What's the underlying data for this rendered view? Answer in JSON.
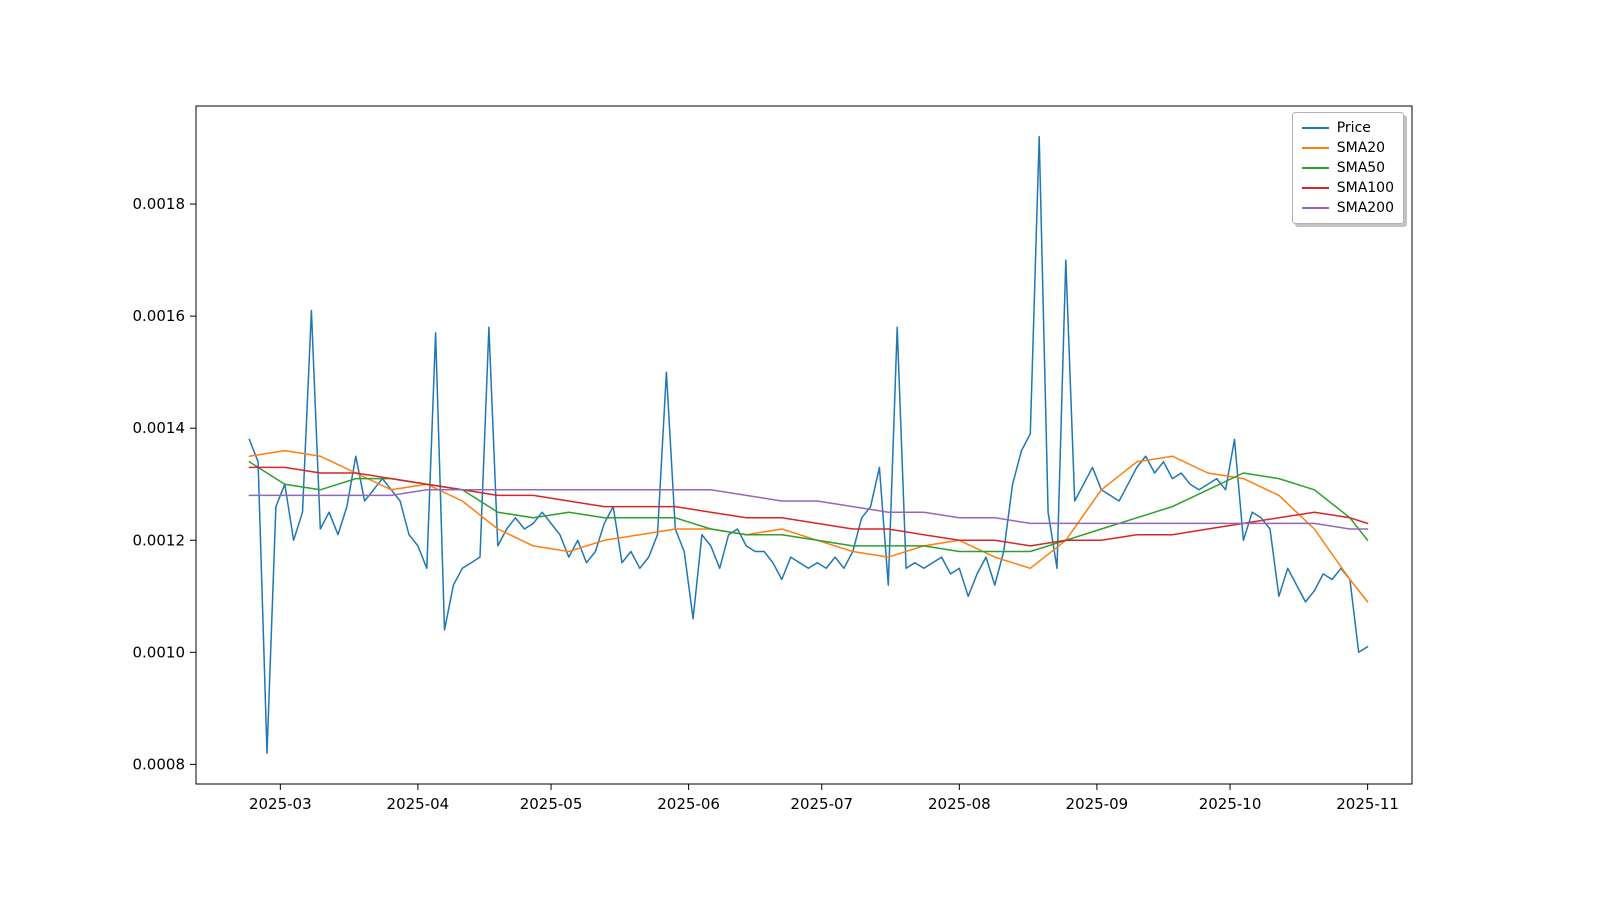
{
  "chart_data": {
    "type": "line",
    "title": "",
    "xlabel": "",
    "ylabel": "",
    "grid": false,
    "x_axis": {
      "unit": "days-from-first-point",
      "range_days": [
        -12,
        262
      ],
      "ticks_days": [
        7,
        38,
        68,
        99,
        129,
        160,
        191,
        221,
        252
      ],
      "tick_labels": [
        "2025-03",
        "2025-04",
        "2025-05",
        "2025-06",
        "2025-07",
        "2025-08",
        "2025-09",
        "2025-10",
        "2025-11"
      ]
    },
    "y_axis": {
      "range": [
        0.000765,
        0.001975
      ],
      "ticks": [
        0.0008,
        0.001,
        0.0012,
        0.0014,
        0.0016,
        0.0018
      ],
      "tick_labels": [
        "0.0008",
        "0.0010",
        "0.0012",
        "0.0014",
        "0.0016",
        "0.0018"
      ]
    },
    "legend": {
      "position": "upper right",
      "entries": [
        "Price",
        "SMA20",
        "SMA50",
        "SMA100",
        "SMA200"
      ]
    },
    "series": [
      {
        "name": "Price",
        "color": "#1f77b4",
        "x_start_day": 0,
        "x_step_days": 2,
        "values": [
          0.00138,
          0.00134,
          0.00082,
          0.00126,
          0.0013,
          0.0012,
          0.00125,
          0.00161,
          0.00122,
          0.00125,
          0.00121,
          0.00126,
          0.00135,
          0.00127,
          0.00129,
          0.00131,
          0.00129,
          0.00127,
          0.00121,
          0.00119,
          0.00115,
          0.00157,
          0.00104,
          0.00112,
          0.00115,
          0.00116,
          0.00117,
          0.00158,
          0.00119,
          0.00122,
          0.00124,
          0.00122,
          0.00123,
          0.00125,
          0.00123,
          0.00121,
          0.00117,
          0.0012,
          0.00116,
          0.00118,
          0.00123,
          0.00126,
          0.00116,
          0.00118,
          0.00115,
          0.00117,
          0.00121,
          0.0015,
          0.00122,
          0.00118,
          0.00106,
          0.00121,
          0.00119,
          0.00115,
          0.00121,
          0.00122,
          0.00119,
          0.00118,
          0.00118,
          0.00116,
          0.00113,
          0.00117,
          0.00116,
          0.00115,
          0.00116,
          0.00115,
          0.00117,
          0.00115,
          0.00118,
          0.00124,
          0.00126,
          0.00133,
          0.00112,
          0.00158,
          0.00115,
          0.00116,
          0.00115,
          0.00116,
          0.00117,
          0.00114,
          0.00115,
          0.0011,
          0.00114,
          0.00117,
          0.00112,
          0.00118,
          0.0013,
          0.00136,
          0.00139,
          0.00192,
          0.00125,
          0.00115,
          0.0017,
          0.00127,
          0.0013,
          0.00133,
          0.00129,
          0.00128,
          0.00127,
          0.0013,
          0.00133,
          0.00135,
          0.00132,
          0.00134,
          0.00131,
          0.00132,
          0.0013,
          0.00129,
          0.0013,
          0.00131,
          0.00129,
          0.00138,
          0.0012,
          0.00125,
          0.00124,
          0.00122,
          0.0011,
          0.00115,
          0.00112,
          0.00109,
          0.00111,
          0.00114,
          0.00113,
          0.00115,
          0.00113,
          0.001,
          0.00101
        ]
      },
      {
        "name": "SMA20",
        "color": "#ff7f0e",
        "x_days": [
          0,
          8,
          16,
          24,
          32,
          40,
          48,
          56,
          64,
          72,
          80,
          88,
          96,
          104,
          112,
          120,
          128,
          136,
          144,
          152,
          160,
          168,
          176,
          184,
          192,
          200,
          208,
          216,
          224,
          232,
          240,
          248,
          252
        ],
        "values": [
          0.00135,
          0.00136,
          0.00135,
          0.00132,
          0.00129,
          0.0013,
          0.00127,
          0.00122,
          0.00119,
          0.00118,
          0.0012,
          0.00121,
          0.00122,
          0.00122,
          0.00121,
          0.00122,
          0.0012,
          0.00118,
          0.00117,
          0.00119,
          0.0012,
          0.00117,
          0.00115,
          0.0012,
          0.00129,
          0.00134,
          0.00135,
          0.00132,
          0.00131,
          0.00128,
          0.00122,
          0.00113,
          0.00109
        ]
      },
      {
        "name": "SMA50",
        "color": "#2ca02c",
        "x_days": [
          0,
          8,
          16,
          24,
          32,
          40,
          48,
          56,
          64,
          72,
          80,
          88,
          96,
          104,
          112,
          120,
          128,
          136,
          144,
          152,
          160,
          168,
          176,
          184,
          192,
          200,
          208,
          216,
          224,
          232,
          240,
          248,
          252
        ],
        "values": [
          0.00134,
          0.0013,
          0.00129,
          0.00131,
          0.00131,
          0.0013,
          0.00129,
          0.00125,
          0.00124,
          0.00125,
          0.00124,
          0.00124,
          0.00124,
          0.00122,
          0.00121,
          0.00121,
          0.0012,
          0.00119,
          0.00119,
          0.00119,
          0.00118,
          0.00118,
          0.00118,
          0.0012,
          0.00122,
          0.00124,
          0.00126,
          0.00129,
          0.00132,
          0.00131,
          0.00129,
          0.00124,
          0.0012
        ]
      },
      {
        "name": "SMA100",
        "color": "#d62728",
        "x_days": [
          0,
          8,
          16,
          24,
          32,
          40,
          48,
          56,
          64,
          72,
          80,
          88,
          96,
          104,
          112,
          120,
          128,
          136,
          144,
          152,
          160,
          168,
          176,
          184,
          192,
          200,
          208,
          216,
          224,
          232,
          240,
          248,
          252
        ],
        "values": [
          0.00133,
          0.00133,
          0.00132,
          0.00132,
          0.00131,
          0.0013,
          0.00129,
          0.00128,
          0.00128,
          0.00127,
          0.00126,
          0.00126,
          0.00126,
          0.00125,
          0.00124,
          0.00124,
          0.00123,
          0.00122,
          0.00122,
          0.00121,
          0.0012,
          0.0012,
          0.00119,
          0.0012,
          0.0012,
          0.00121,
          0.00121,
          0.00122,
          0.00123,
          0.00124,
          0.00125,
          0.00124,
          0.00123
        ]
      },
      {
        "name": "SMA200",
        "color": "#9467bd",
        "x_days": [
          0,
          8,
          16,
          24,
          32,
          40,
          48,
          56,
          64,
          72,
          80,
          88,
          96,
          104,
          112,
          120,
          128,
          136,
          144,
          152,
          160,
          168,
          176,
          184,
          192,
          200,
          208,
          216,
          224,
          232,
          240,
          248,
          252
        ],
        "values": [
          0.00128,
          0.00128,
          0.00128,
          0.00128,
          0.00128,
          0.00129,
          0.00129,
          0.00129,
          0.00129,
          0.00129,
          0.00129,
          0.00129,
          0.00129,
          0.00129,
          0.00128,
          0.00127,
          0.00127,
          0.00126,
          0.00125,
          0.00125,
          0.00124,
          0.00124,
          0.00123,
          0.00123,
          0.00123,
          0.00123,
          0.00123,
          0.00123,
          0.00123,
          0.00123,
          0.00123,
          0.00122,
          0.00122
        ]
      }
    ]
  }
}
